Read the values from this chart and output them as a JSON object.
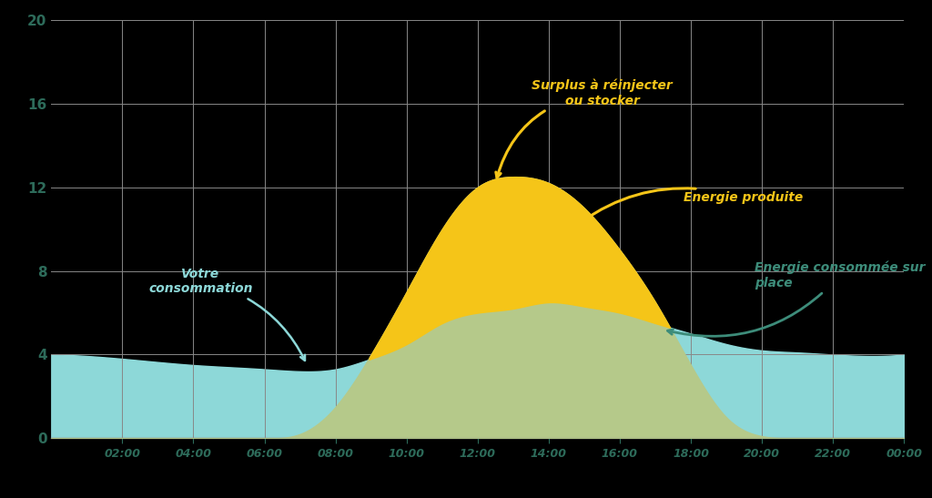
{
  "background_color": "#000000",
  "plot_bg_color": "#000000",
  "grid_color": "#888888",
  "tick_label_color": "#2d6b5a",
  "ylim": [
    0,
    20
  ],
  "yticks": [
    0,
    4,
    8,
    12,
    16,
    20
  ],
  "xtick_labels": [
    "02:00",
    "04:00",
    "06:00",
    "08:00",
    "10:00",
    "12:00",
    "14:00",
    "16:00",
    "18:00",
    "20:00",
    "22:00",
    "00:00"
  ],
  "consumption_color": "#8dd8d8",
  "solar_color": "#b5c98a",
  "surplus_color": "#f5c518",
  "annotation_surplus_text": "Surplus à réinjecter\nou stocker",
  "annotation_surplus_color": "#f5c518",
  "annotation_energie_text": "Energie produite",
  "annotation_energie_color": "#f5c518",
  "annotation_conso_text": "Votre\nconsommation",
  "annotation_conso_color": "#8dd8d8",
  "annotation_place_text": "Energie consommée sur\nplace",
  "annotation_place_color": "#3d8c7a",
  "x_knots": [
    0,
    2,
    4,
    6,
    7,
    8,
    9,
    10,
    11,
    12,
    13,
    14,
    15,
    16,
    17,
    18,
    19,
    20,
    21,
    22,
    24
  ],
  "consumption_knots": [
    4.0,
    3.8,
    3.5,
    3.3,
    3.2,
    3.3,
    3.8,
    4.5,
    5.5,
    6.0,
    6.2,
    6.5,
    6.3,
    6.0,
    5.5,
    5.0,
    4.5,
    4.2,
    4.1,
    4.0,
    4.0
  ],
  "solar_knots": [
    0,
    0,
    0,
    0,
    0.2,
    1.5,
    4.0,
    7.0,
    10.0,
    12.0,
    12.5,
    12.2,
    11.0,
    9.0,
    6.5,
    3.5,
    1.0,
    0.1,
    0,
    0,
    0
  ],
  "figsize": [
    10.24,
    5.47
  ],
  "dpi": 100
}
